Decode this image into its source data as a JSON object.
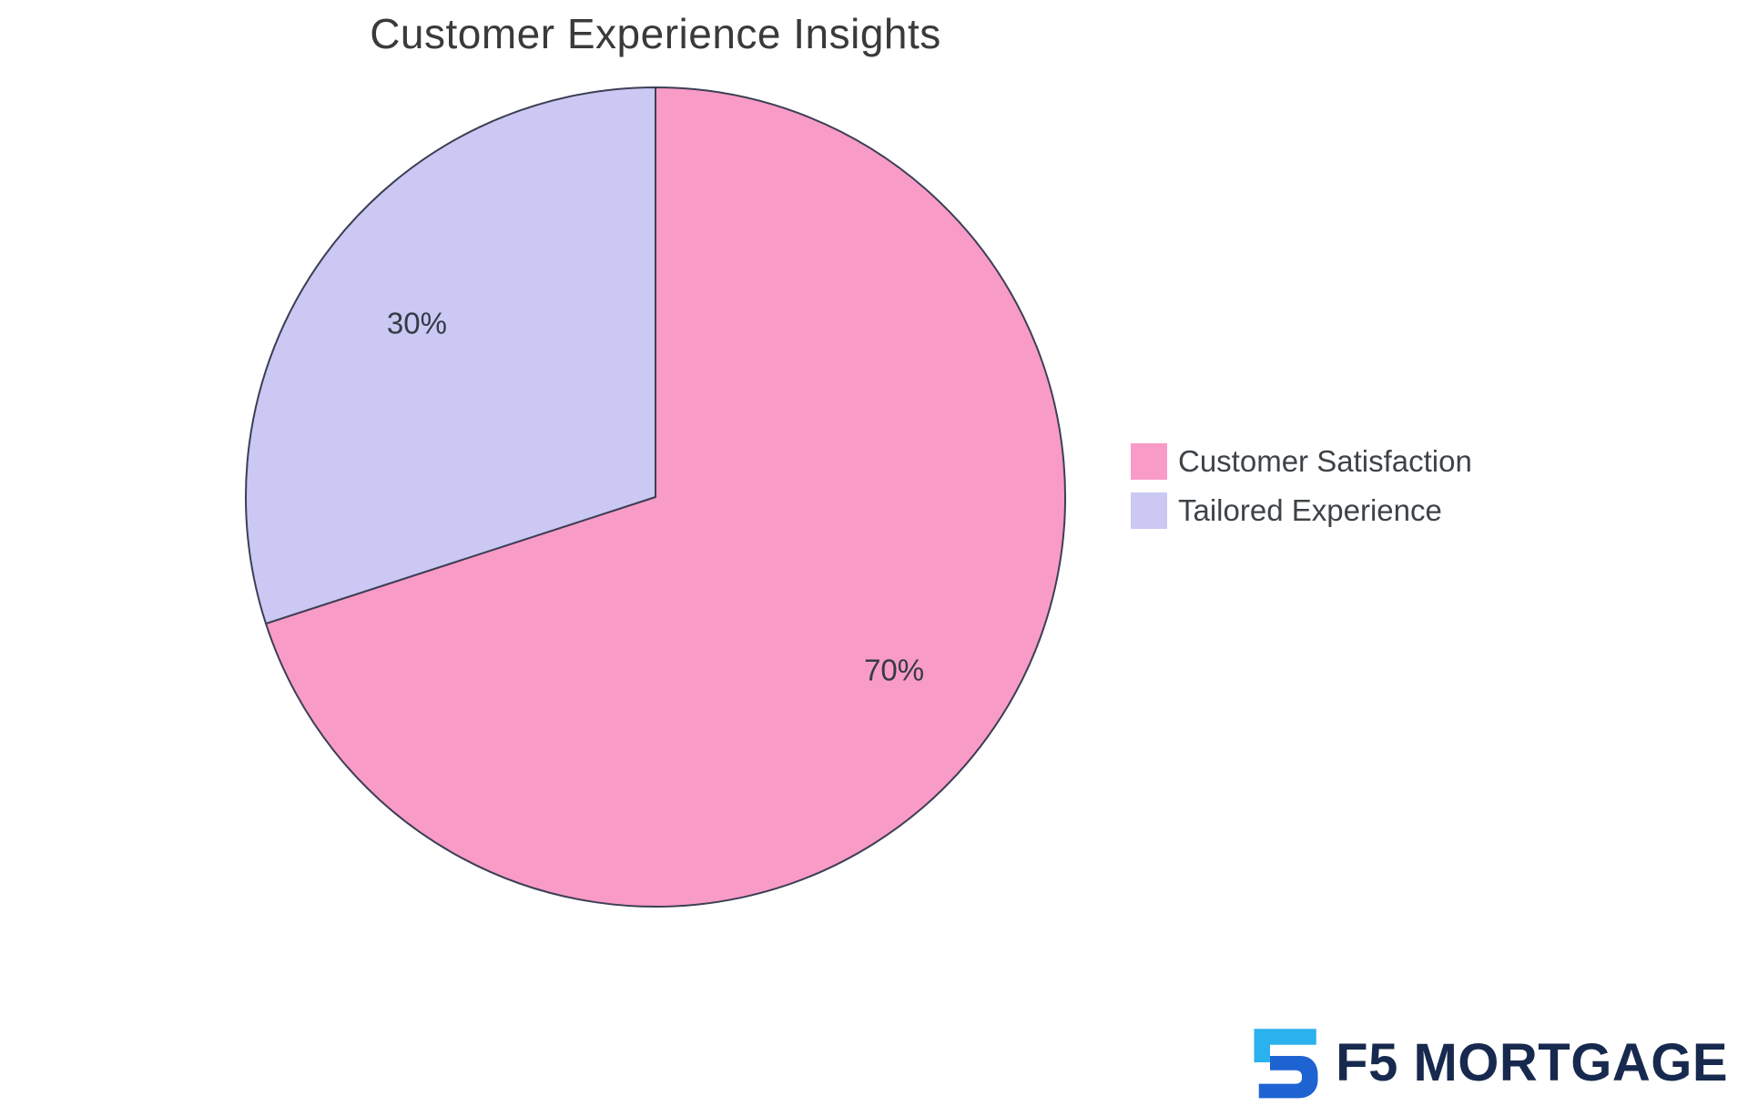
{
  "chart_data": {
    "type": "pie",
    "title": "Customer Experience Insights",
    "labels": [
      "Customer Satisfaction",
      "Tailored Experience"
    ],
    "values": [
      70,
      30
    ],
    "percent_labels": [
      "70%",
      "30%"
    ],
    "colors": [
      "#F99BC7",
      "#CBC8F4"
    ],
    "outline_color": "#3C3F54",
    "label_color": "#353B45",
    "start_angle_deg": 0,
    "direction": "clockwise",
    "legend_position": "right"
  },
  "branding": {
    "logo_text": "F5 MORTGAGE",
    "logo_icon": "f5-mortgage-mark",
    "colors": {
      "light_blue": "#2BB1EE",
      "dark_blue": "#1E63D2",
      "navy_text": "#17294E"
    }
  }
}
